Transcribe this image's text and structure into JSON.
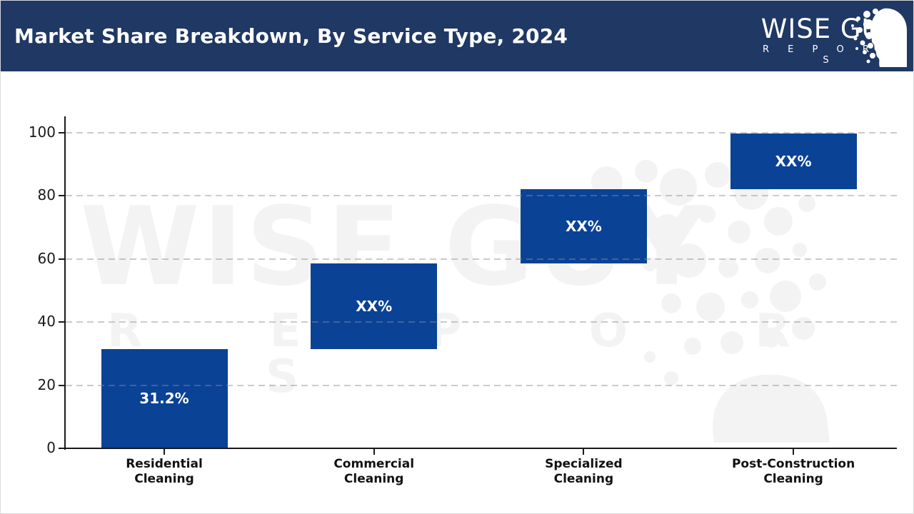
{
  "header": {
    "title": "Market Share Breakdown, By Service Type, 2024",
    "logo": {
      "line1": "WISE GUY",
      "line2": "R E P O R T S"
    }
  },
  "watermark": {
    "line1": "WISE GUY",
    "line2": "R E P O R T S"
  },
  "chart_data": {
    "type": "bar",
    "subtype": "waterfall",
    "title": "Market Share Breakdown, By Service Type, 2024",
    "categories": [
      "Residential\nCleaning",
      "Commercial\nCleaning",
      "Specialized\nCleaning",
      "Post-Construction\nCleaning"
    ],
    "bars": [
      {
        "category": "Residential Cleaning",
        "start": 0,
        "end": 31.2,
        "label": "31.2%"
      },
      {
        "category": "Commercial Cleaning",
        "start": 31.2,
        "end": 58.4,
        "label": "XX%"
      },
      {
        "category": "Specialized Cleaning",
        "start": 58.4,
        "end": 82.0,
        "label": "XX%"
      },
      {
        "category": "Post-Construction Cleaning",
        "start": 81.8,
        "end": 99.6,
        "label": "XX%"
      }
    ],
    "xlabel": "",
    "ylabel": "",
    "ylim": [
      0,
      105
    ],
    "yticks": [
      0,
      20,
      40,
      60,
      80,
      100
    ],
    "grid": "horizontal-dashed",
    "legend": "none",
    "colors": {
      "bar": "#0a4296",
      "bar_label": "#ffffff",
      "header_bg": "#1f3864",
      "grid": "#c8c8c8",
      "watermark": "#f3f3f3",
      "axis": "#1a1a1a"
    }
  }
}
